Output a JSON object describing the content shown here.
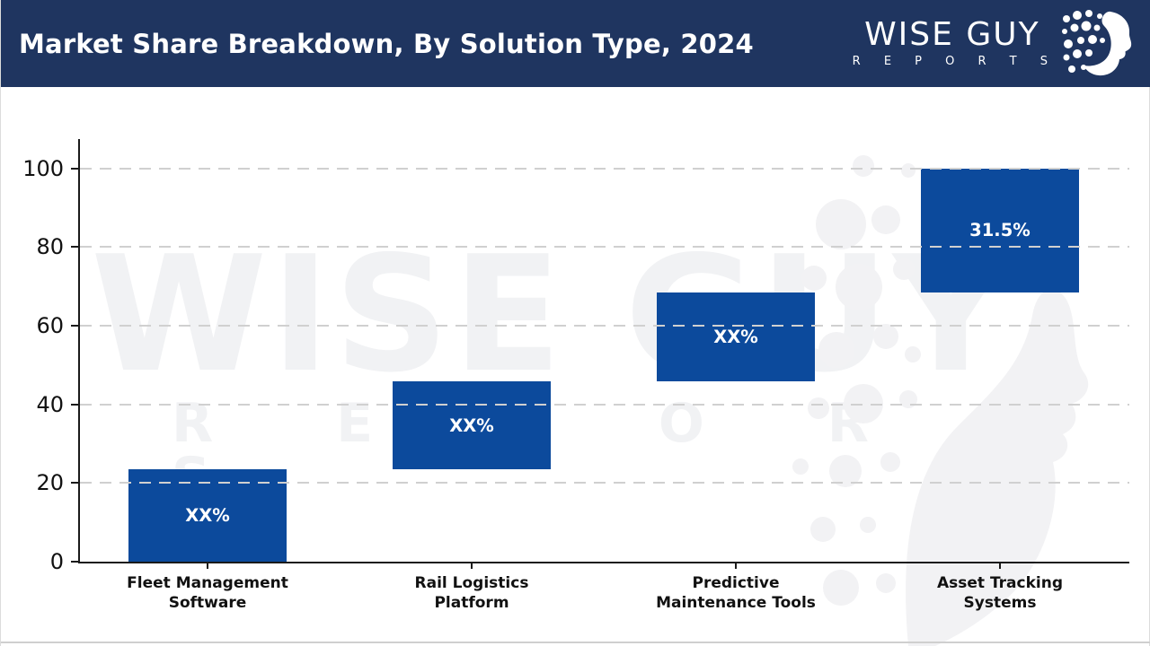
{
  "header": {
    "title": "Market Share Breakdown, By Solution Type, 2024",
    "logo": {
      "line1": "WISE GUY",
      "line2": "R E P O R T S"
    }
  },
  "watermark": {
    "line1": "WISE GUY",
    "line2": "R E P O R T S"
  },
  "chart_data": {
    "type": "bar",
    "subtype": "floating-segment (waterfall style market-share breakdown)",
    "title": "Market Share Breakdown, By Solution Type, 2024",
    "categories": [
      "Fleet Management\nSoftware",
      "Rail Logistics\nPlatform",
      "Predictive\nMaintenance Tools",
      "Asset Tracking\nSystems"
    ],
    "segments": [
      {
        "category": "Fleet Management Software",
        "start": 0,
        "end": 23.5,
        "label": "XX%"
      },
      {
        "category": "Rail Logistics Platform",
        "start": 23.5,
        "end": 45.8,
        "label": "XX%"
      },
      {
        "category": "Predictive Maintenance Tools",
        "start": 45.8,
        "end": 68.5,
        "label": "XX%"
      },
      {
        "category": "Asset Tracking Systems",
        "start": 68.5,
        "end": 100,
        "label": "31.5%"
      }
    ],
    "xlabel": "",
    "ylabel": "",
    "ylim": [
      0,
      100
    ],
    "yticks": [
      0,
      20,
      40,
      60,
      80,
      100
    ],
    "grid": "horizontal dashed",
    "legend": "none",
    "colors": {
      "bar": "#0c4a9c",
      "grid": "#d0d0d0",
      "axis": "#1a1a1a",
      "header_bg": "#1f3560",
      "bar_label_text": "#ffffff",
      "watermark": "#f1f2f4"
    }
  }
}
